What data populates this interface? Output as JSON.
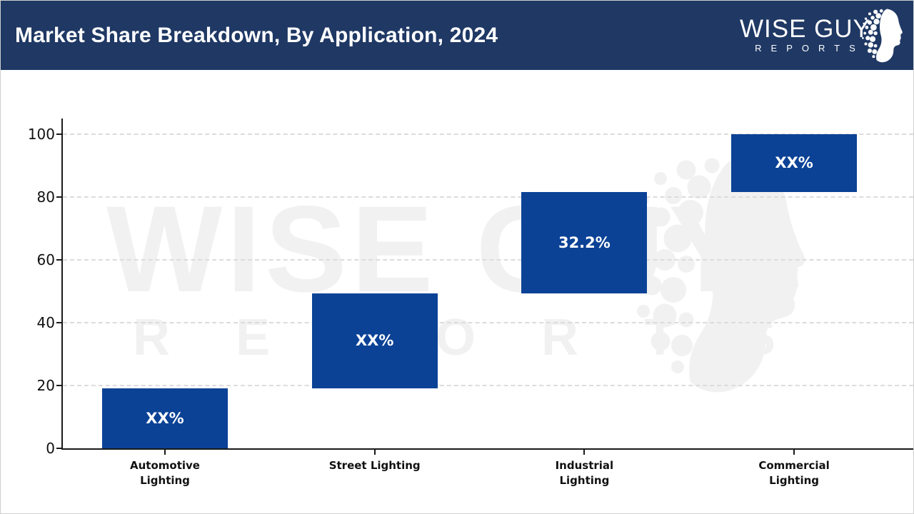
{
  "header": {
    "title": "Market Share Breakdown, By Application, 2024",
    "logo": {
      "line1": "WISE GUY",
      "line2": "REPORTS"
    }
  },
  "watermark": {
    "line1": "WISE GUY",
    "line2": "REPORTS"
  },
  "colors": {
    "header_bg": "#1f3864",
    "bar": "#0b4296",
    "grid": "#dcdcdc",
    "axis": "#1a1a1a",
    "bar_label_text": "#ffffff",
    "watermark": "#f1f1f1",
    "logo_text": "#ffffff"
  },
  "chart_data": {
    "type": "bar",
    "subtype": "floating-waterfall",
    "title": "Market Share Breakdown, By Application, 2024",
    "xlabel": "",
    "ylabel": "",
    "categories": [
      "Automotive\nLighting",
      "Street Lighting",
      "Industrial\nLighting",
      "Commercial\nLighting"
    ],
    "segments": [
      {
        "category": "Automotive Lighting",
        "start": 0,
        "end": 19.2,
        "label": "XX%"
      },
      {
        "category": "Street Lighting",
        "start": 19.2,
        "end": 49.4,
        "label": "XX%"
      },
      {
        "category": "Industrial Lighting",
        "start": 49.4,
        "end": 81.6,
        "label": "32.2%"
      },
      {
        "category": "Commercial Lighting",
        "start": 81.6,
        "end": 100,
        "label": "XX%"
      }
    ],
    "yticks": [
      0,
      20,
      40,
      60,
      80,
      100
    ],
    "ylim": [
      0,
      105
    ],
    "grid": "horizontal-dashed",
    "legend": "none"
  }
}
